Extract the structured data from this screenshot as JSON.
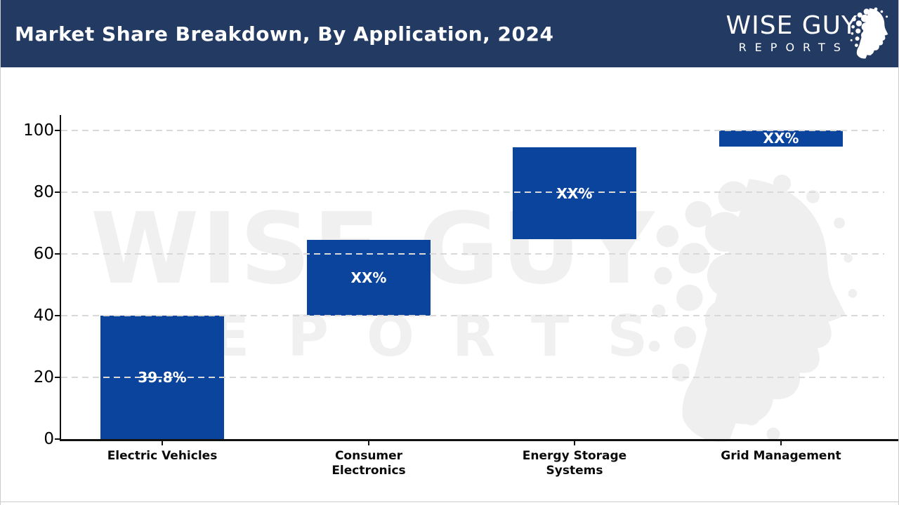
{
  "header": {
    "title": "Market Share Breakdown, By Application, 2024",
    "bg_color": "#233a63",
    "logo": {
      "line1": "WISE GUY",
      "line2": "REPORTS"
    }
  },
  "watermark": {
    "line1": "WISE GUY",
    "line2": "REPORTS"
  },
  "colors": {
    "bar": "#0b449c",
    "header_bg": "#233a63",
    "grid": "#d9d9d9",
    "watermark": "#f0f0f0",
    "axis": "#111111"
  },
  "chart_data": {
    "type": "bar",
    "subtype": "waterfall",
    "title": "Market Share Breakdown, By Application, 2024",
    "categories": [
      "Electric Vehicles",
      "Consumer Electronics",
      "Energy Storage Systems",
      "Grid Management"
    ],
    "category_lines": [
      [
        "Electric Vehicles"
      ],
      [
        "Consumer",
        "Electronics"
      ],
      [
        "Energy Storage",
        "Systems"
      ],
      [
        "Grid Management"
      ]
    ],
    "bars": [
      {
        "category": "Electric Vehicles",
        "start": 0,
        "end": 40,
        "label": "39.8%"
      },
      {
        "category": "Consumer Electronics",
        "start": 40,
        "end": 64.6,
        "label": "XX%"
      },
      {
        "category": "Energy Storage Systems",
        "start": 64.7,
        "end": 94.6,
        "label": "XX%"
      },
      {
        "category": "Grid Management",
        "start": 94.8,
        "end": 100,
        "label": "XX%"
      }
    ],
    "xlabel": "",
    "ylabel": "",
    "ylim": [
      0,
      100
    ],
    "yticks": [
      0,
      20,
      40,
      60,
      80,
      100
    ],
    "grid": "horizontal-dashed",
    "legend": "none",
    "bar_color": "#0b449c"
  }
}
